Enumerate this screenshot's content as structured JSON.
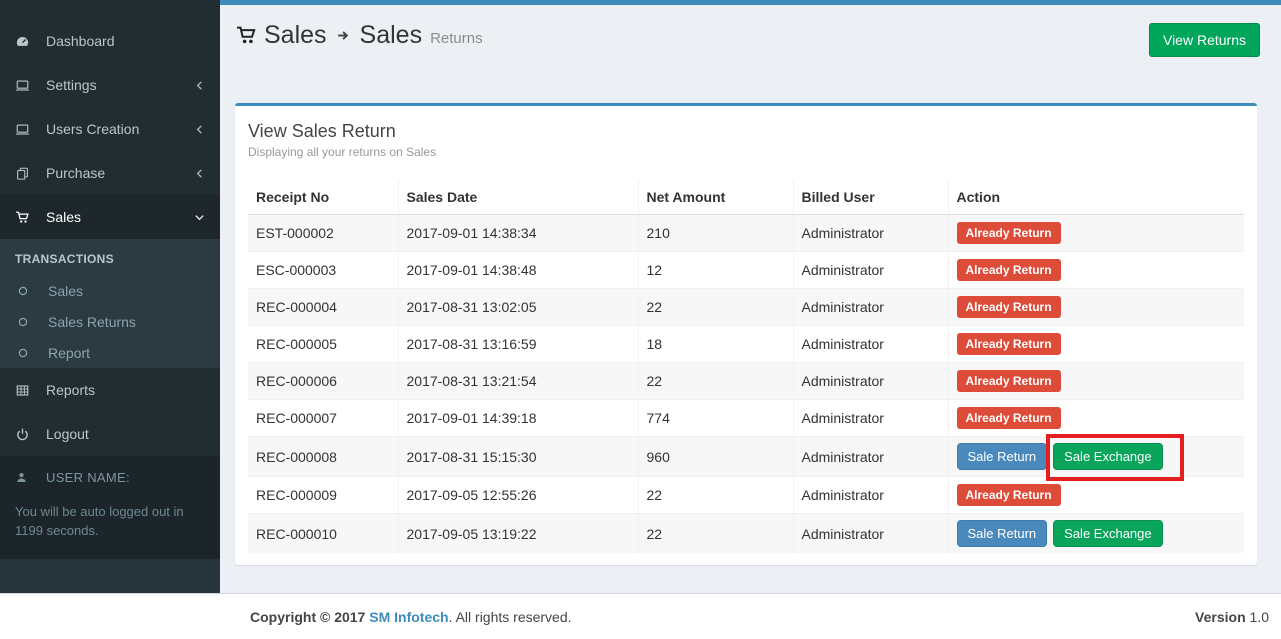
{
  "sidebar": {
    "items": [
      {
        "label": "Dashboard",
        "icon": "dashboard-icon"
      },
      {
        "label": "Settings",
        "icon": "desktop-icon",
        "chevron": "left"
      },
      {
        "label": "Users Creation",
        "icon": "desktop-icon",
        "chevron": "left"
      },
      {
        "label": "Purchase",
        "icon": "copy-icon",
        "chevron": "left"
      },
      {
        "label": "Sales",
        "icon": "cart-icon",
        "chevron": "down",
        "active": true
      }
    ],
    "section_label": "TRANSACTIONS",
    "submenu": [
      {
        "label": "Sales",
        "icon": "circle-icon"
      },
      {
        "label": "Sales Returns",
        "icon": "circle-icon"
      },
      {
        "label": "Report",
        "icon": "circle-icon"
      }
    ],
    "items_bottom": [
      {
        "label": "Reports",
        "icon": "table-icon"
      },
      {
        "label": "Logout",
        "icon": "power-icon"
      }
    ],
    "user": {
      "label": "USER NAME:",
      "note_line1": "You will be auto logged out in",
      "note_line2": "1199 seconds."
    }
  },
  "header": {
    "breadcrumb": {
      "primary": "Sales",
      "secondary": "Sales",
      "small": "Returns"
    },
    "view_returns_button": "View Returns"
  },
  "panel": {
    "title": "View Sales Return",
    "subtitle": "Displaying all your returns on Sales"
  },
  "table": {
    "columns": [
      "Receipt No",
      "Sales Date",
      "Net Amount",
      "Billed User",
      "Action"
    ],
    "action_labels": {
      "already_return": "Already Return",
      "sale_return": "Sale Return",
      "sale_exchange": "Sale Exchange"
    },
    "rows": [
      {
        "receipt_no": "EST-000002",
        "sales_date": "2017-09-01 14:38:34",
        "net_amount": "210",
        "billed_user": "Administrator",
        "actions": [
          "already_return"
        ]
      },
      {
        "receipt_no": "ESC-000003",
        "sales_date": "2017-09-01 14:38:48",
        "net_amount": "12",
        "billed_user": "Administrator",
        "actions": [
          "already_return"
        ]
      },
      {
        "receipt_no": "REC-000004",
        "sales_date": "2017-08-31 13:02:05",
        "net_amount": "22",
        "billed_user": "Administrator",
        "actions": [
          "already_return"
        ]
      },
      {
        "receipt_no": "REC-000005",
        "sales_date": "2017-08-31 13:16:59",
        "net_amount": "18",
        "billed_user": "Administrator",
        "actions": [
          "already_return"
        ]
      },
      {
        "receipt_no": "REC-000006",
        "sales_date": "2017-08-31 13:21:54",
        "net_amount": "22",
        "billed_user": "Administrator",
        "actions": [
          "already_return"
        ]
      },
      {
        "receipt_no": "REC-000007",
        "sales_date": "2017-09-01 14:39:18",
        "net_amount": "774",
        "billed_user": "Administrator",
        "actions": [
          "already_return"
        ]
      },
      {
        "receipt_no": "REC-000008",
        "sales_date": "2017-08-31 15:15:30",
        "net_amount": "960",
        "billed_user": "Administrator",
        "actions": [
          "sale_return",
          "sale_exchange"
        ],
        "highlight": "sale_exchange"
      },
      {
        "receipt_no": "REC-000009",
        "sales_date": "2017-09-05 12:55:26",
        "net_amount": "22",
        "billed_user": "Administrator",
        "actions": [
          "already_return"
        ]
      },
      {
        "receipt_no": "REC-000010",
        "sales_date": "2017-09-05 13:19:22",
        "net_amount": "22",
        "billed_user": "Administrator",
        "actions": [
          "sale_return",
          "sale_exchange"
        ]
      }
    ]
  },
  "footer": {
    "copyright_prefix": "Copyright © 2017",
    "company": "SM Infotech",
    "copyright_suffix": ". All rights reserved.",
    "version_label": "Version",
    "version_value": "1.0"
  },
  "colors": {
    "accent_blue": "#3c8dbc",
    "sidebar_dark": "#222d32",
    "submenu_dark": "#2c3b41",
    "success_green": "#08a55a",
    "danger_red": "#dd4b39",
    "button_blue": "#4a89bc",
    "highlight_red": "#e3201f",
    "page_background": "#ecf0f5"
  }
}
